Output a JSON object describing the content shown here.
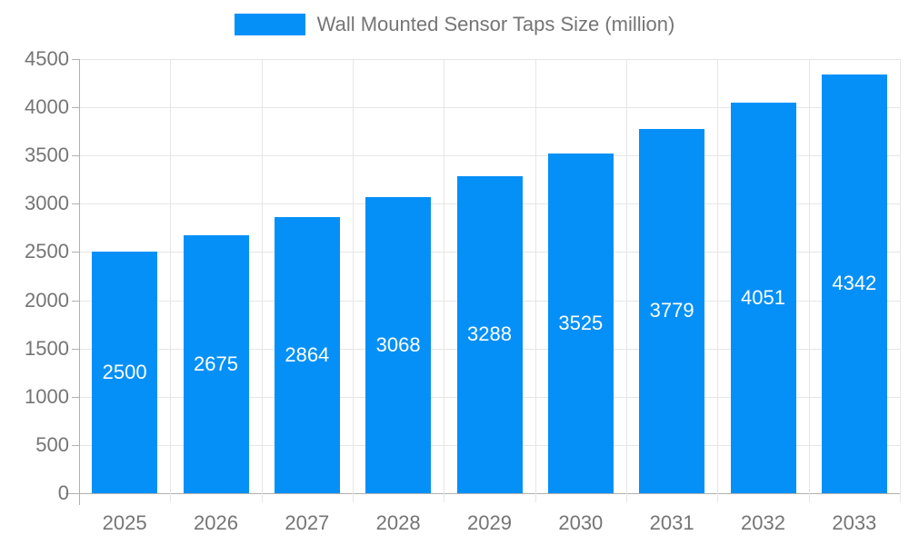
{
  "chart_data": {
    "type": "bar",
    "title": "Wall Mounted Sensor Taps Size (million)",
    "categories": [
      "2025",
      "2026",
      "2027",
      "2028",
      "2029",
      "2030",
      "2031",
      "2032",
      "2033"
    ],
    "values": [
      2500,
      2675,
      2864,
      3068,
      3288,
      3525,
      3779,
      4051,
      4342
    ],
    "xlabel": "",
    "ylabel": "",
    "ylim": [
      0,
      4500
    ],
    "ytick_step": 500,
    "grid": true,
    "legend_position": "top-center",
    "bar_color": "#0590f8",
    "bar_label_color": "#ffffff",
    "grid_color": "#e6e6e6",
    "axis_color": "#b0b0b0",
    "tick_text_color": "#757575"
  }
}
